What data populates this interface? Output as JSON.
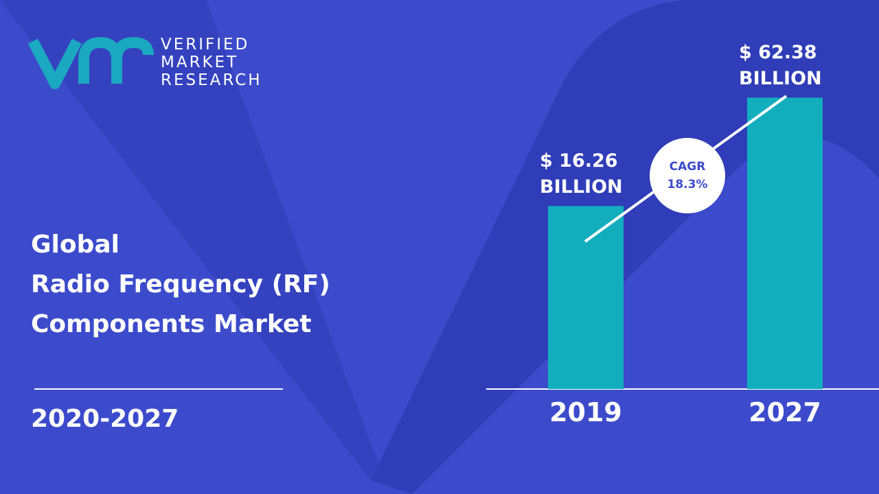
{
  "logo": {
    "line1": "VERIFIED",
    "line2": "MARKET",
    "line3": "RESEARCH"
  },
  "heading": {
    "line1": "Global",
    "line2": "Radio Frequency (RF)",
    "line3": "Components Market"
  },
  "period": "2020-2027",
  "chart_data": {
    "type": "bar",
    "categories": [
      "2019",
      "2027"
    ],
    "values": [
      16.26,
      62.38
    ],
    "value_labels": [
      "$ 16.26 BILLION",
      "$ 62.38 BILLION"
    ],
    "color": "#13aebe",
    "cagr_label": "CAGR",
    "cagr_value": "18.3%"
  }
}
